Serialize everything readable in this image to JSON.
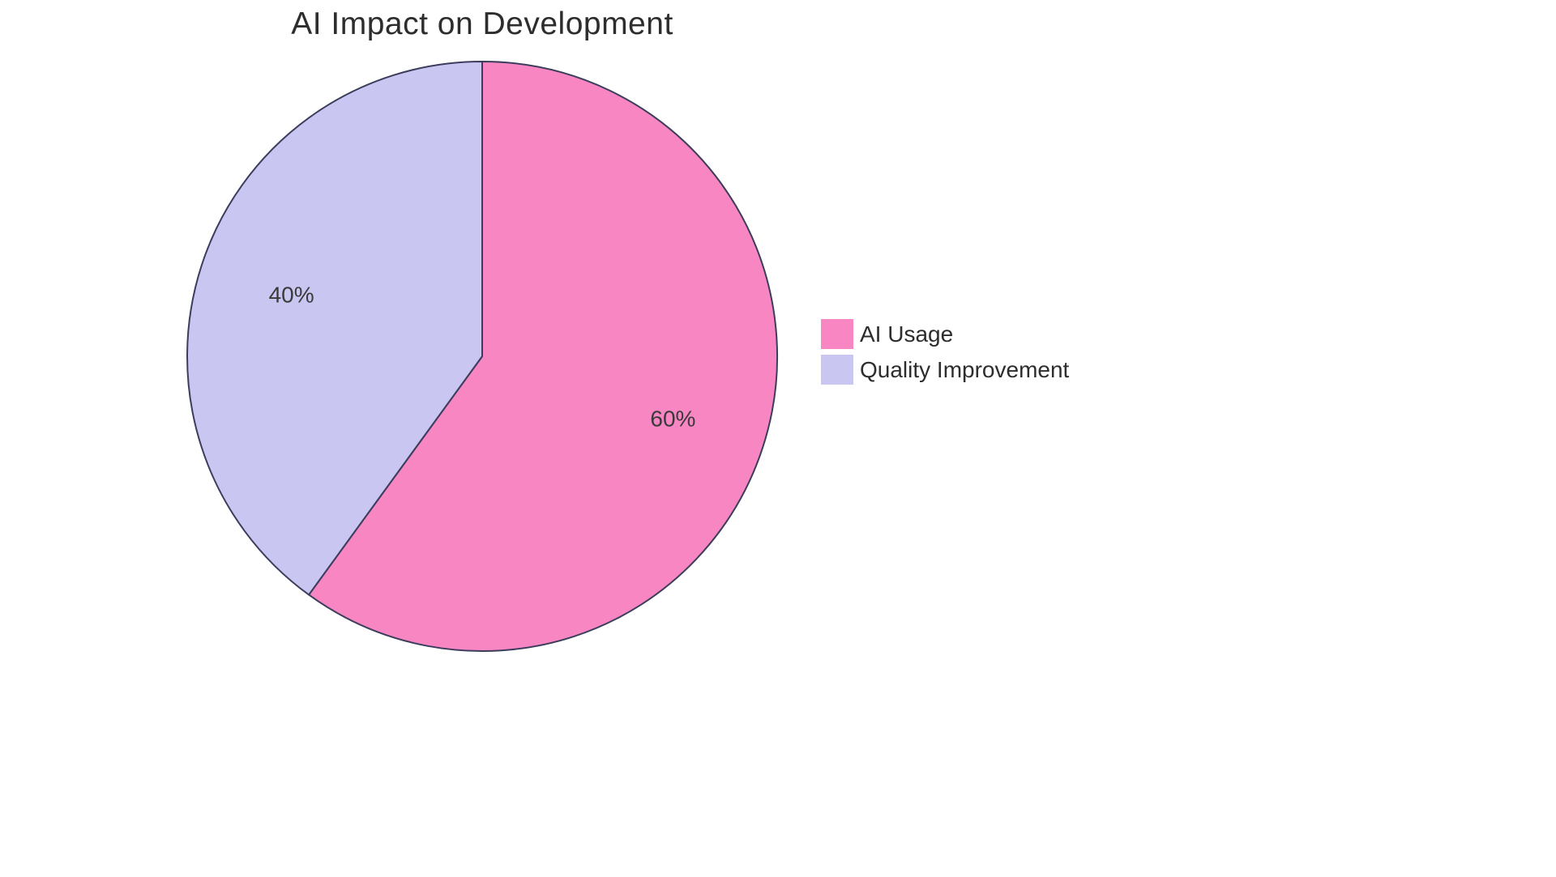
{
  "chart_data": {
    "type": "pie",
    "title": "AI Impact on Development",
    "series": [
      {
        "label": "AI Usage",
        "value": 60,
        "pct_label": "60%",
        "color": "#F786C3"
      },
      {
        "label": "Quality Improvement",
        "value": 40,
        "pct_label": "40%",
        "color": "#C9C6F2"
      }
    ],
    "start_angle_deg": 0,
    "direction": "clockwise",
    "legend_position": "right",
    "slice_border_color": "#3C3D5C",
    "slice_label_color": "#3A3A3A",
    "title_color": "#2D2D2D",
    "background_color": "#FFFFFF"
  }
}
